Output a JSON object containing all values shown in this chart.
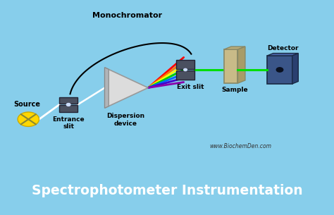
{
  "bg_color": "#87CEEB",
  "banner_color": "#2D6A10",
  "banner_text": "Spectrophotometer Instrumentation",
  "banner_text_color": "#FFFFFF",
  "website_text": "www.BiochemDen.com",
  "monochromator_label": "Monochromator",
  "labels": {
    "source": "Source",
    "entrance_slit": "Entrance\nslit",
    "dispersion": "Dispersion\ndevice",
    "exit_slit": "Exit slit",
    "sample": "Sample",
    "detector": "Detector"
  },
  "fig_width": 4.74,
  "fig_height": 3.05,
  "dpi": 100
}
